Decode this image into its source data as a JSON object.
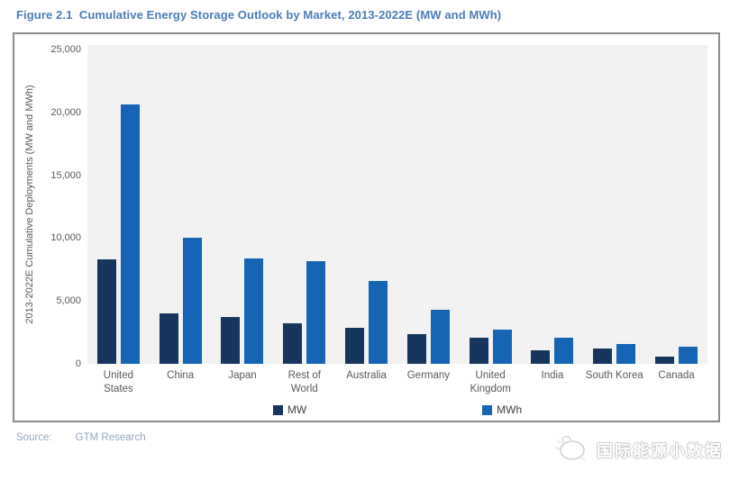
{
  "title": "Figure 2.1  Cumulative Energy Storage Outlook by Market, 2013-2022E (MW and MWh)",
  "source": {
    "label": "Source:",
    "value": "GTM Research"
  },
  "watermark": {
    "text": "国际能源小数据",
    "icon": "sketch-bulb-icon"
  },
  "colors": {
    "title": "#4a7db8",
    "mw_bar": "#17365d",
    "mwh_bar": "#1565b4",
    "plot_background": "#f2f2f3",
    "chart_border": "#8c8c8c",
    "axis_text": "#595959",
    "source_text": "#92a8bc"
  },
  "chart_data": {
    "type": "bar",
    "title": "Figure 2.1  Cumulative Energy Storage Outlook by Market, 2013-2022E (MW and MWh)",
    "xlabel": "",
    "ylabel": "2013-2022E Cumulative Deployments (MW and MWh)",
    "ylim": [
      0,
      25000
    ],
    "yticks": [
      0,
      5000,
      10000,
      15000,
      20000,
      25000
    ],
    "ytick_labels": [
      "0",
      "5,000",
      "10,000",
      "15,000",
      "20,000",
      "25,000"
    ],
    "grid": false,
    "legend_position": "bottom",
    "categories": [
      "United States",
      "China",
      "Japan",
      "Rest of World",
      "Australia",
      "Germany",
      "United Kingdom",
      "India",
      "South Korea",
      "Canada"
    ],
    "series": [
      {
        "name": "MW",
        "color": "#17365d",
        "values": [
          8300,
          4000,
          3700,
          3200,
          2900,
          2400,
          2100,
          1050,
          1200,
          600
        ]
      },
      {
        "name": "MWh",
        "color": "#1565b4",
        "values": [
          20600,
          10000,
          8400,
          8200,
          6600,
          4300,
          2700,
          2050,
          1550,
          1350
        ]
      }
    ]
  }
}
